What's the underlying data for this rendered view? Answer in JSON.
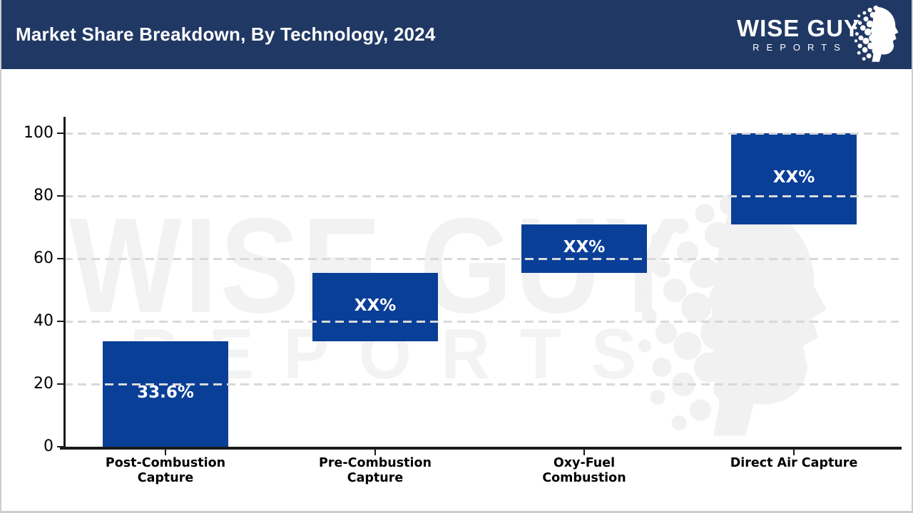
{
  "header": {
    "title": "Market Share Breakdown, By Technology, 2024"
  },
  "logo": {
    "line1": "WISE GUY",
    "line2": "REPORTS"
  },
  "watermark": {
    "line1": "WISE GUY",
    "line2": "REPORTS"
  },
  "colors": {
    "header_background": "#203864",
    "bar_blue": "#0a3f97",
    "watermark_gray": "#f1f1f2",
    "gridline_gray": "#d9d9d9"
  },
  "chart_data": {
    "type": "bar",
    "subtype": "waterfall",
    "title": "Market Share Breakdown, By Technology, 2024",
    "categories": [
      "Post-Combustion\nCapture",
      "Pre-Combustion\nCapture",
      "Oxy-Fuel\nCombustion",
      "Direct Air Capture"
    ],
    "bars": [
      {
        "category": "Post-Combustion Capture",
        "start": 0,
        "end": 33.6,
        "label": "33.6%"
      },
      {
        "category": "Pre-Combustion Capture",
        "start": 33.6,
        "end": 55.4,
        "label": "XX%"
      },
      {
        "category": "Oxy-Fuel Combustion",
        "start": 55.4,
        "end": 70.8,
        "label": "XX%"
      },
      {
        "category": "Direct Air Capture",
        "start": 70.8,
        "end": 100,
        "label": "XX%"
      }
    ],
    "xlabel": "",
    "ylabel": "",
    "ylim": [
      0,
      100
    ],
    "yticks": [
      0,
      20,
      40,
      60,
      80,
      100
    ],
    "grid": "horizontal-dashed",
    "legend": "none",
    "bar_color": "#0a3f97",
    "value_label_color": "#ffffff"
  }
}
